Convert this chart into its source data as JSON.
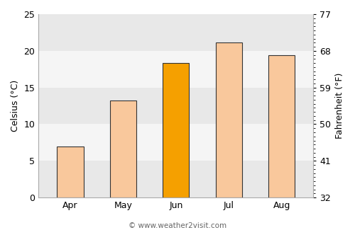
{
  "categories": [
    "Apr",
    "May",
    "Jun",
    "Jul",
    "Aug"
  ],
  "values_c": [
    7.0,
    13.2,
    18.3,
    21.1,
    19.4
  ],
  "bar_colors": [
    "#f9c89c",
    "#f9c89c",
    "#f5a000",
    "#f9c89c",
    "#f9c89c"
  ],
  "bar_edgecolor": "#333333",
  "ylabel_left": "Celsius (°C)",
  "ylabel_right": "Fahrenheit (°F)",
  "ylim_c": [
    0,
    25
  ],
  "yticks_c": [
    0,
    5,
    10,
    15,
    20,
    25
  ],
  "yticks_f": [
    32,
    41,
    50,
    59,
    68,
    77
  ],
  "fig_bg_color": "#ffffff",
  "band_colors": [
    "#e8e8e8",
    "#f5f5f5"
  ],
  "copyright_text": "© www.weather2visit.com",
  "bar_width": 0.5,
  "xlabel_fontsize": 9,
  "ylabel_fontsize": 9,
  "tick_fontsize": 9
}
